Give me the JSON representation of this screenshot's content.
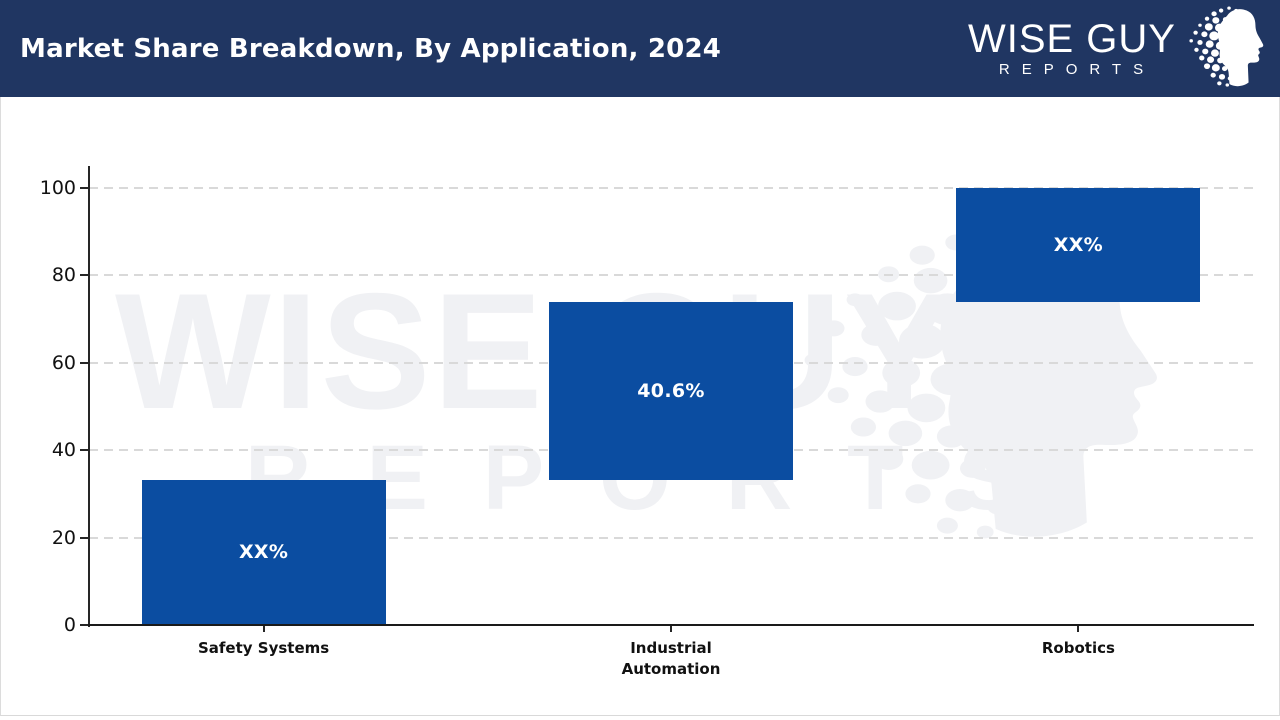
{
  "header": {
    "title": "Market Share Breakdown, By Application, 2024",
    "logo": {
      "name": "WISE GUY REPORTS",
      "line1": "WISE GUY",
      "line2": "REPORTS"
    }
  },
  "watermark": {
    "line1": "WISE GUY",
    "line2": "REPORTS"
  },
  "chart_data": {
    "type": "bar",
    "subtype": "floating-segment-bars (stacked market-share breakdown, one segment per category)",
    "title": "Market Share Breakdown, By Application, 2024",
    "categories": [
      "Safety Systems",
      "Industrial Automation",
      "Robotics"
    ],
    "category_lines": [
      [
        "Safety Systems"
      ],
      [
        "Industrial",
        "Automation"
      ],
      [
        "Robotics"
      ]
    ],
    "segments": [
      {
        "category": "Safety Systems",
        "start": 0,
        "end": 33.2,
        "value": 33.2,
        "label": "XX%"
      },
      {
        "category": "Industrial Automation",
        "start": 33.2,
        "end": 73.8,
        "value": 40.6,
        "label": "40.6%"
      },
      {
        "category": "Robotics",
        "start": 73.8,
        "end": 100,
        "value": 26.2,
        "label": "XX%"
      }
    ],
    "y_ticks": [
      0,
      20,
      40,
      60,
      80,
      100
    ],
    "ylim": [
      0,
      105
    ],
    "xlabel": "",
    "ylabel": "",
    "grid": "horizontal dashed",
    "legend": "none",
    "bar_color": "#0b4da1",
    "bar_label_color": "#ffffff"
  },
  "colors": {
    "header_bg": "#203662",
    "bar": "#0b4da1",
    "grid": "#d9d9d9",
    "axis": "#1a1a1a",
    "watermark": "#f0f1f4",
    "frame_border": "#d9d9d9"
  }
}
